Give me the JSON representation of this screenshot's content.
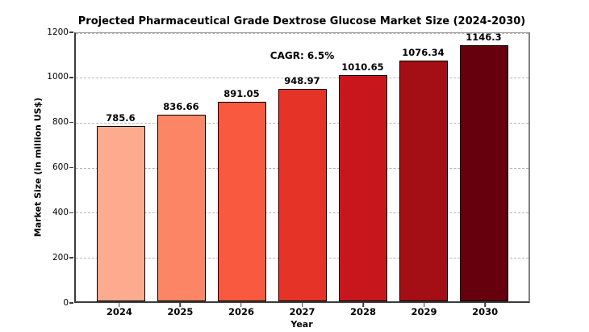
{
  "chart_data": {
    "type": "bar",
    "title": "Projected Pharmaceutical Grade Dextrose Glucose Market Size (2024-2030)",
    "xlabel": "Year",
    "ylabel": "Market Size (in million US$)",
    "categories": [
      "2024",
      "2025",
      "2026",
      "2027",
      "2028",
      "2029",
      "2030"
    ],
    "values": [
      785.6,
      836.66,
      891.05,
      948.97,
      1010.65,
      1076.34,
      1146.3
    ],
    "value_labels": [
      "785.6",
      "836.66",
      "891.05",
      "948.97",
      "1010.65",
      "1076.34",
      "1146.3"
    ],
    "bar_colors": [
      "#fcab8e",
      "#fc8565",
      "#f8593f",
      "#e63328",
      "#c8171c",
      "#a30f15",
      "#67000d"
    ],
    "bar_edge_color": "#000000",
    "ylim": [
      0,
      1200
    ],
    "yticks": [
      0,
      200,
      400,
      600,
      800,
      1000,
      1200
    ],
    "grid": "horizontal-dashed",
    "gridline_color": "#b4b4b4",
    "legend": "none",
    "annotation": {
      "text": "CAGR: 6.5%",
      "x_category": "2027",
      "y_value": 1100
    }
  }
}
